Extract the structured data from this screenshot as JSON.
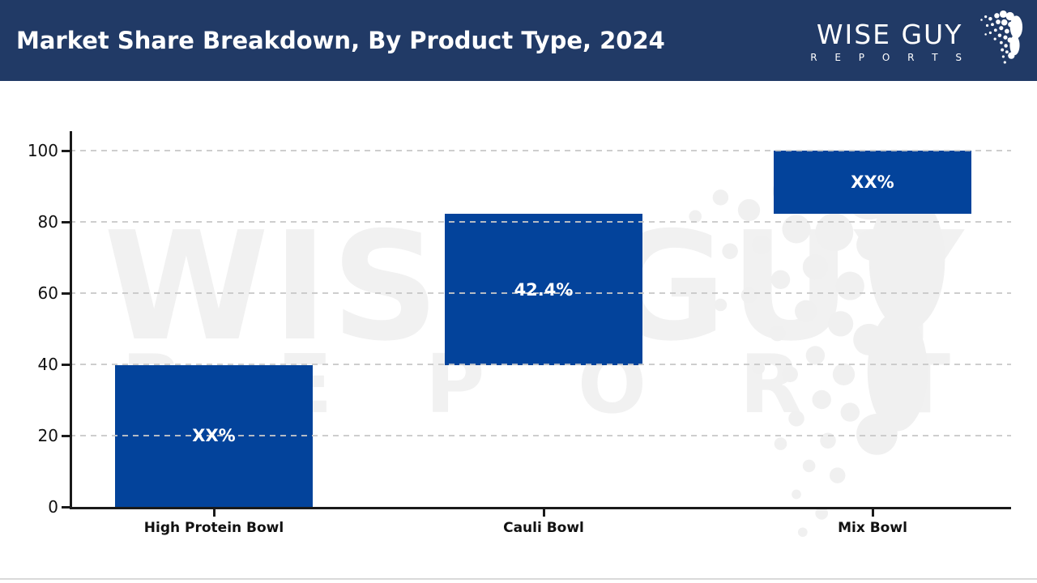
{
  "header": {
    "title": "Market Share Breakdown, By Product Type, 2024"
  },
  "logo": {
    "line1": "WISE GUY",
    "line2": "R E P O R T S"
  },
  "watermark": {
    "line1": "WISE GUY",
    "line2": "R E P O R T S"
  },
  "chart_data": {
    "type": "bar",
    "subtype": "waterfall",
    "title": "Market Share Breakdown, By Product Type, 2024",
    "categories": [
      "High Protein Bowl",
      "Cauli Bowl",
      "Mix Bowl"
    ],
    "segments": [
      {
        "category": "High Protein Bowl",
        "start": 0,
        "end": 39.8,
        "label": "XX%"
      },
      {
        "category": "Cauli Bowl",
        "start": 39.8,
        "end": 82.2,
        "label": "42.4%"
      },
      {
        "category": "Mix Bowl",
        "start": 82.2,
        "end": 100,
        "label": "XX%"
      }
    ],
    "yticks": [
      0,
      20,
      40,
      60,
      80,
      100
    ],
    "ylim": [
      0,
      100
    ],
    "grid": true,
    "legend": false,
    "bar_color": "#03439b",
    "header_color": "#213a66",
    "grid_color": "#c8c8c8",
    "xlabel": "",
    "ylabel": ""
  }
}
